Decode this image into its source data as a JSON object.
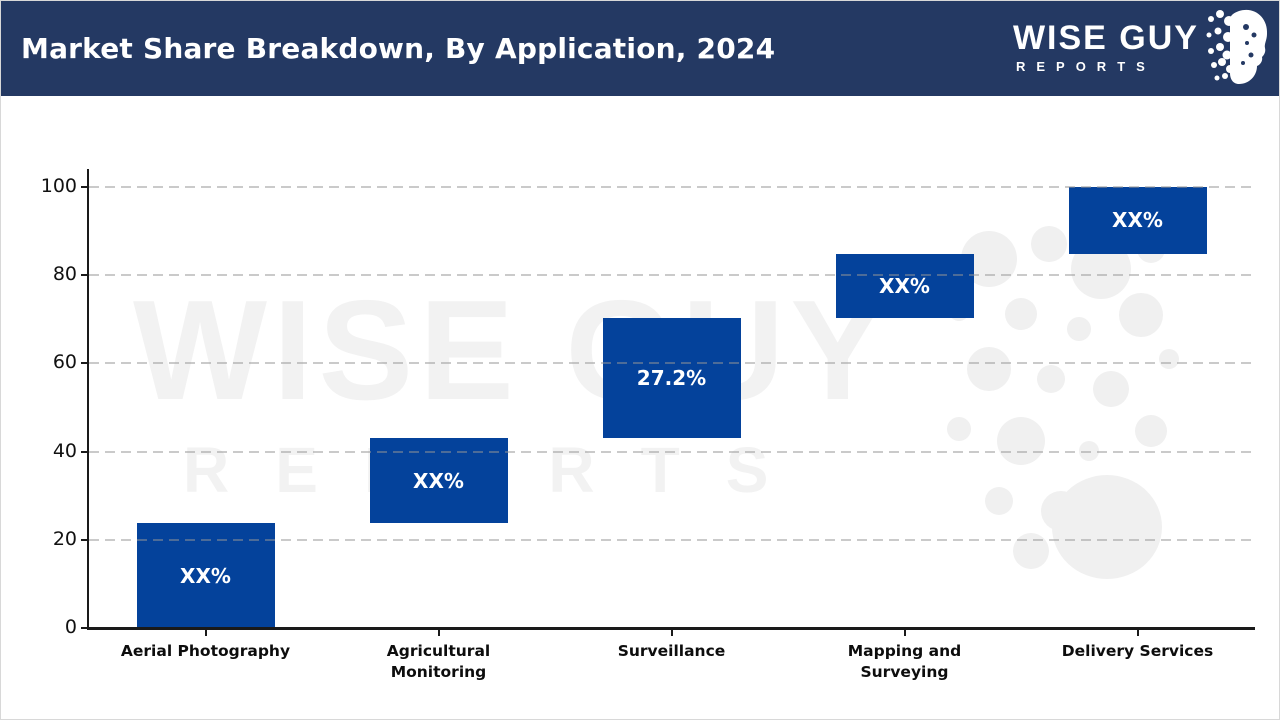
{
  "header": {
    "title": "Market Share Breakdown, By Application, 2024",
    "logo": {
      "name": "WISE GUY",
      "tagline": "REPORTS"
    }
  },
  "watermark": {
    "line1": "WISE GUY",
    "line2": "REPORTS"
  },
  "colors": {
    "header_bg": "#243963",
    "bar": "#04429b",
    "bar_label": "#ffffff",
    "axis": "#1a1a1a",
    "gridline": "#c9c9c9",
    "watermark": "#f2f2f2"
  },
  "chart_data": {
    "type": "bar",
    "variant": "waterfall",
    "title": "Market Share Breakdown, By Application, 2024",
    "ylabel": "",
    "xlabel": "",
    "ylim": [
      0,
      100
    ],
    "y_ticks": [
      0,
      20,
      40,
      60,
      80,
      100
    ],
    "grid": "horizontal-dashed",
    "legend": "none",
    "categories": [
      "Aerial Photography",
      "Agricultural Monitoring",
      "Surveillance",
      "Mapping and Surveying",
      "Delivery Services"
    ],
    "bars": [
      {
        "category": "Aerial Photography",
        "category_lines": [
          "Aerial Photography"
        ],
        "start": 0,
        "end": 23.8,
        "label": "XX%"
      },
      {
        "category": "Agricultural Monitoring",
        "category_lines": [
          "Agricultural",
          "Monitoring"
        ],
        "start": 23.8,
        "end": 43.0,
        "label": "XX%"
      },
      {
        "category": "Surveillance",
        "category_lines": [
          "Surveillance"
        ],
        "start": 43.0,
        "end": 70.2,
        "label": "27.2%"
      },
      {
        "category": "Mapping and Surveying",
        "category_lines": [
          "Mapping and",
          "Surveying"
        ],
        "start": 70.2,
        "end": 84.9,
        "label": "XX%"
      },
      {
        "category": "Delivery Services",
        "category_lines": [
          "Delivery Services"
        ],
        "start": 84.9,
        "end": 100,
        "label": "XX%"
      }
    ]
  }
}
